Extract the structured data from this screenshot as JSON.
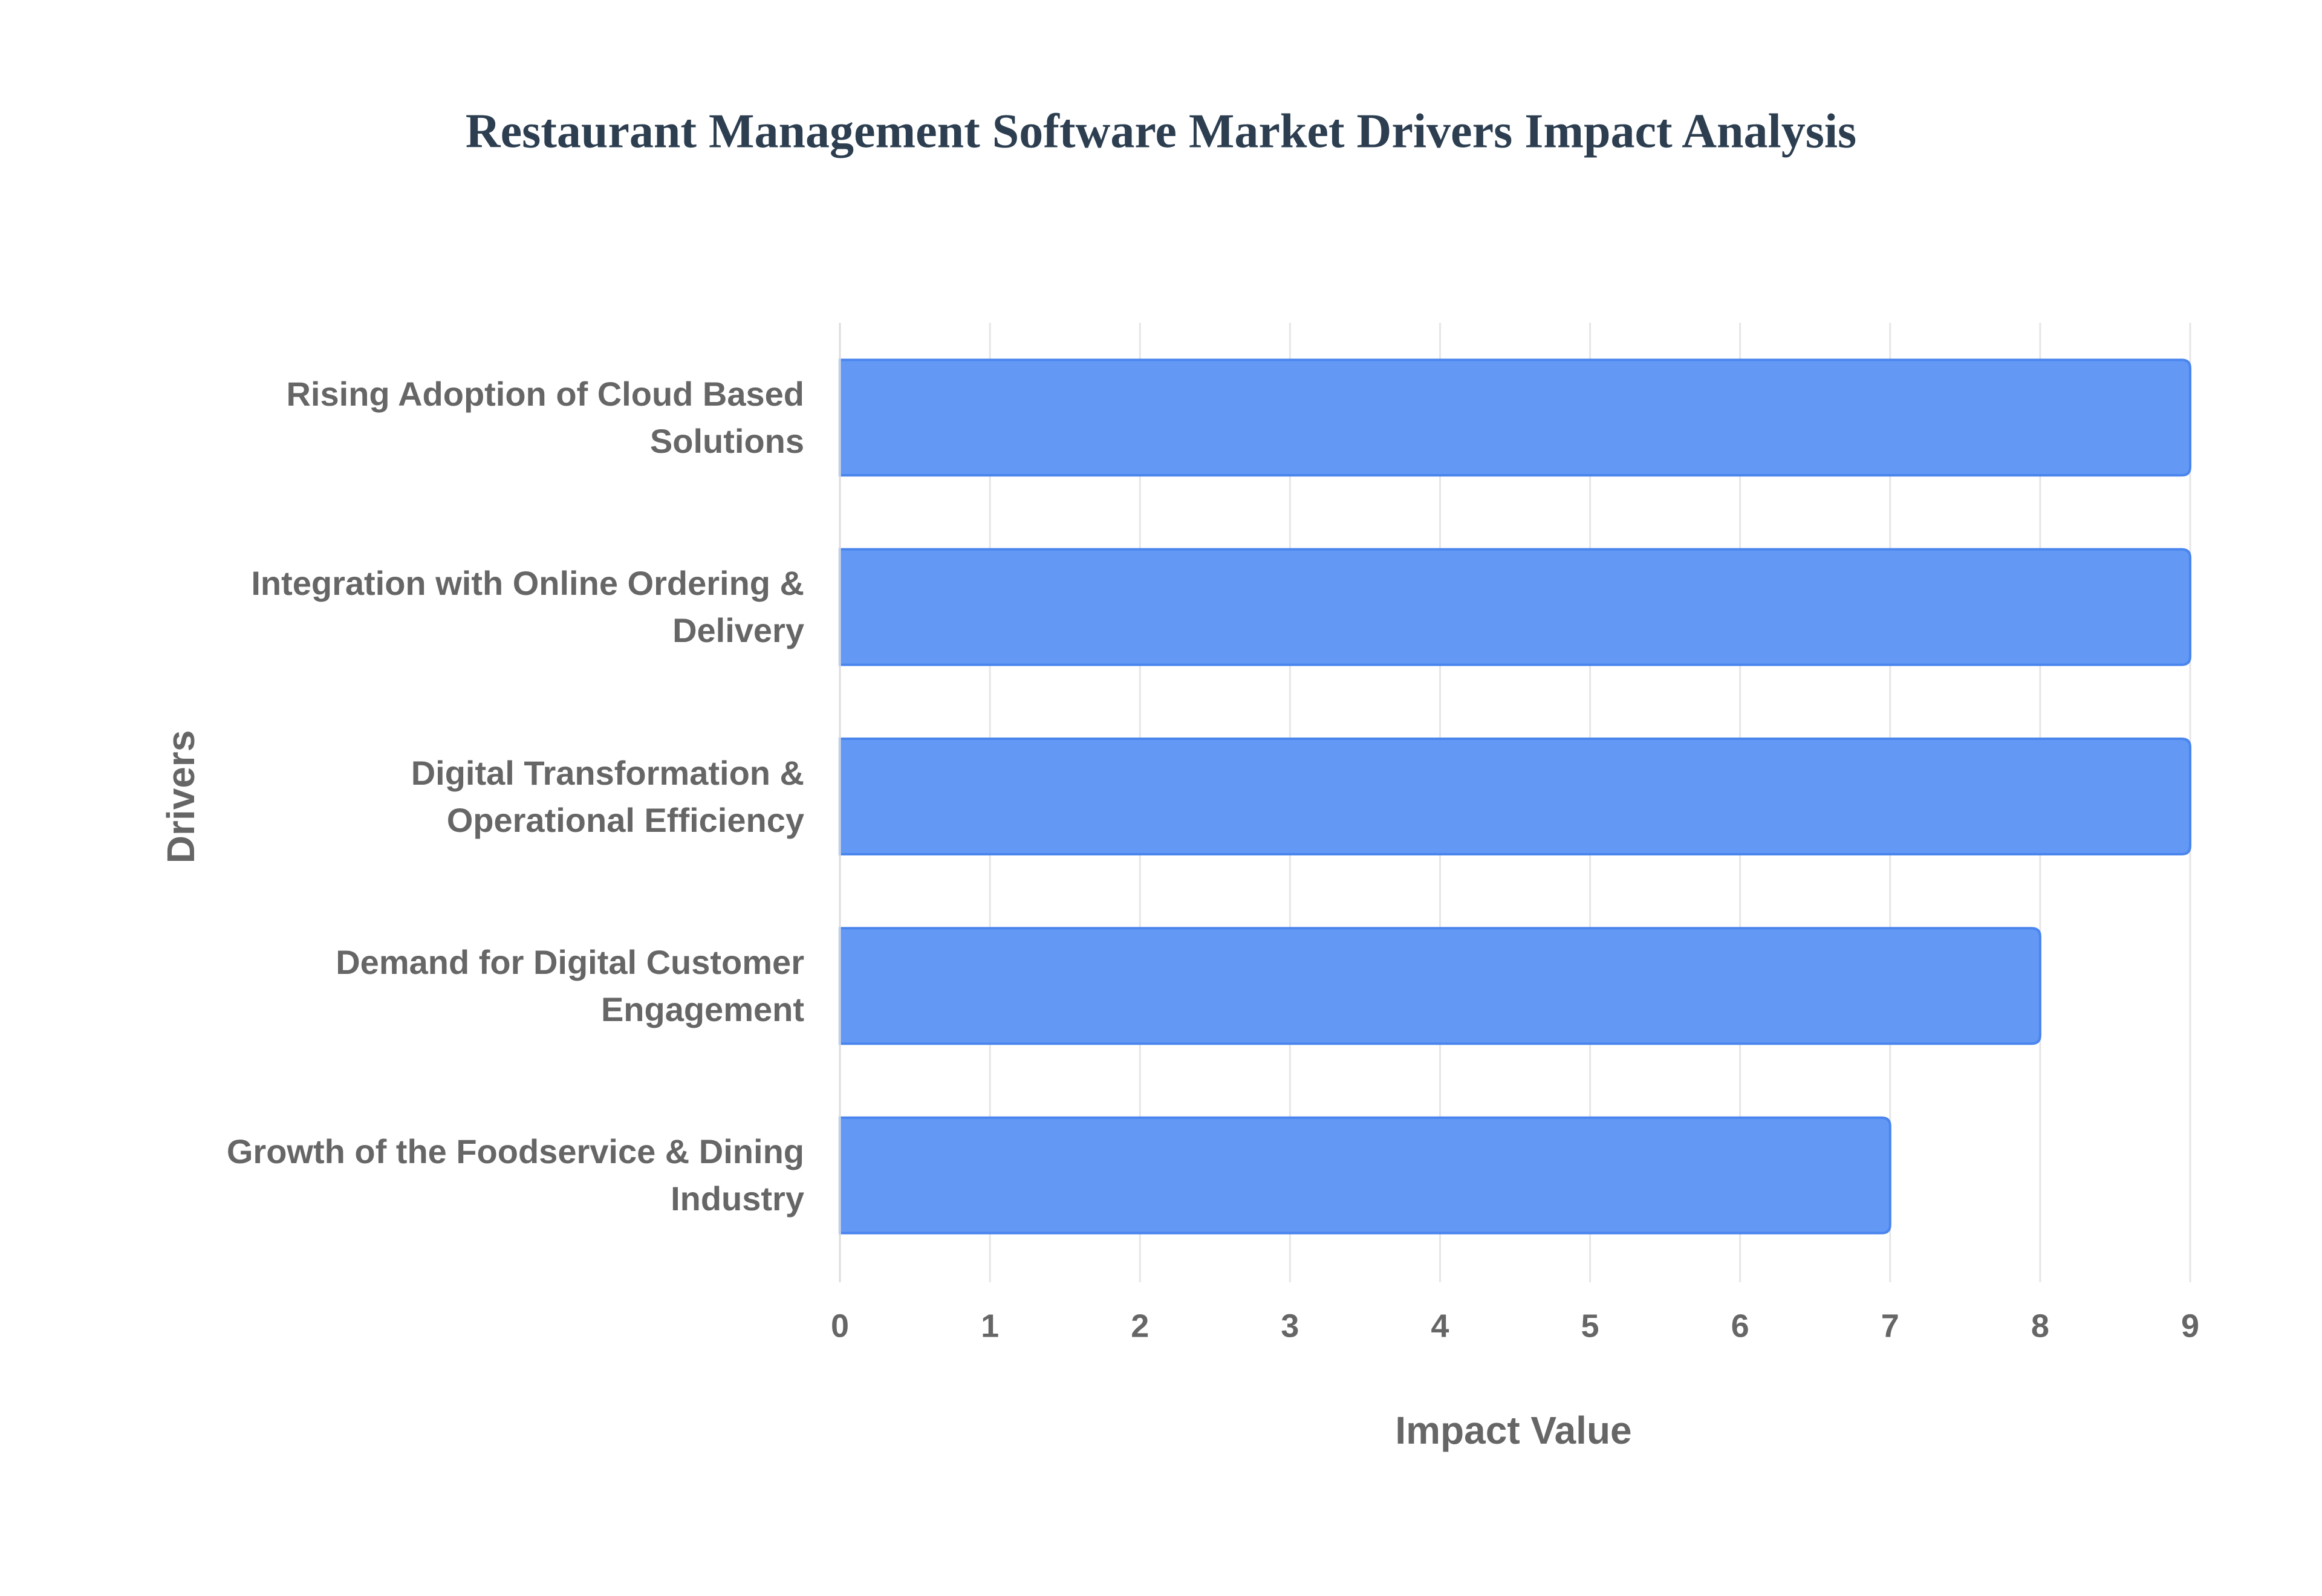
{
  "chart_data": {
    "type": "bar",
    "orientation": "horizontal",
    "title": "Restaurant Management Software Market Drivers Impact Analysis",
    "x_label": "Impact Value",
    "y_label": "Drivers",
    "categories": [
      "Rising Adoption of Cloud Based Solutions",
      "Integration with Online Ordering & Delivery",
      "Digital Transformation & Operational Efficiency",
      "Demand for Digital Customer Engagement",
      "Growth of the Foodservice & Dining Industry"
    ],
    "values": [
      9,
      9,
      9,
      8,
      7
    ],
    "color": "#6399f5",
    "xlim": [
      0,
      9
    ],
    "xticks": [
      0,
      1,
      2,
      3,
      4,
      5,
      6,
      7,
      8,
      9
    ],
    "grid": true
  }
}
